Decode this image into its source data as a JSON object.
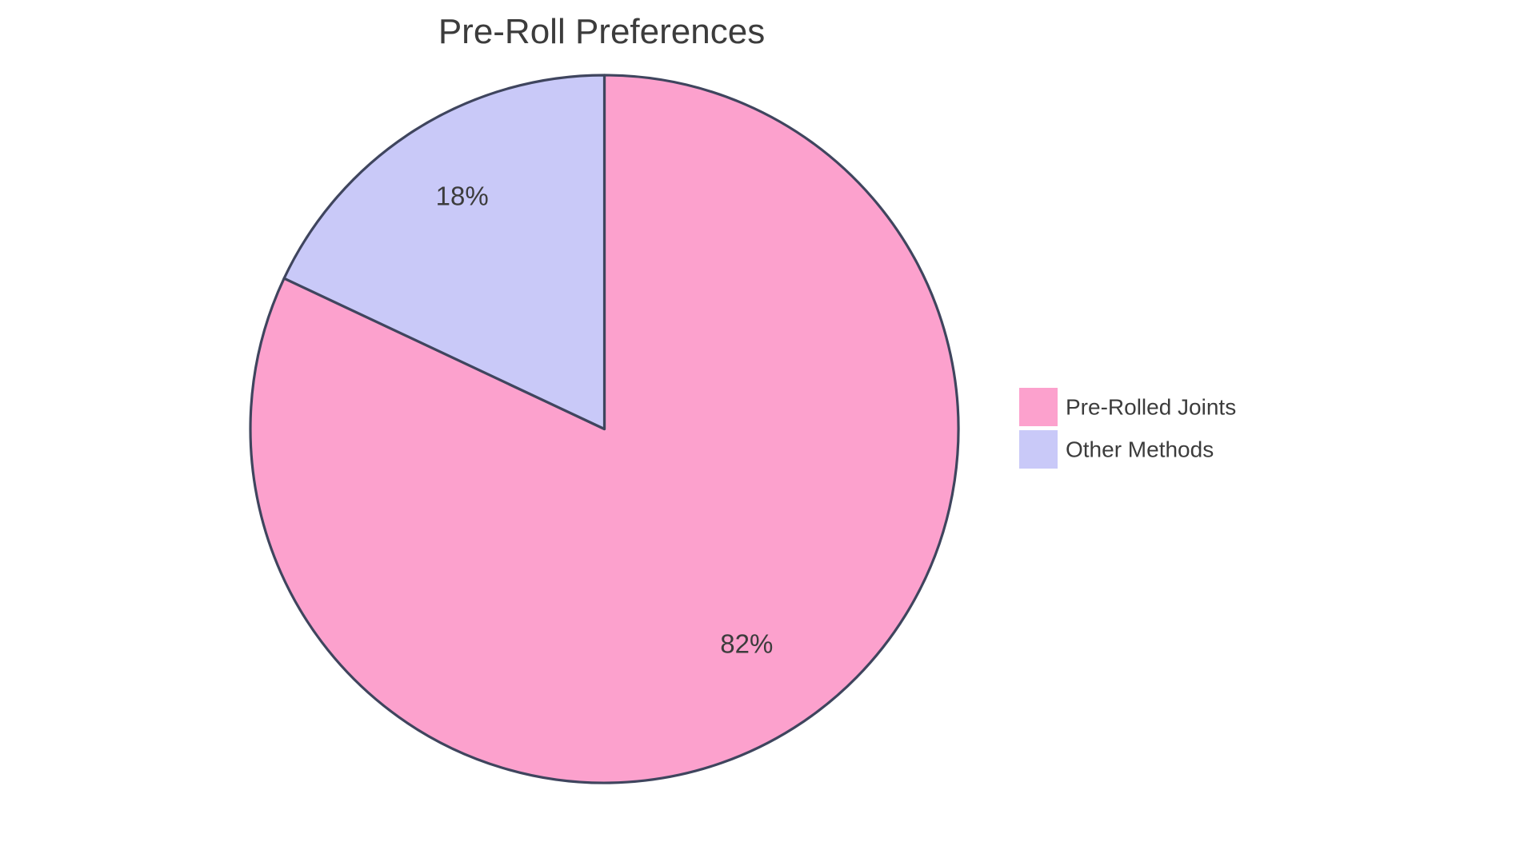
{
  "chart_data": {
    "type": "pie",
    "title": "Pre-Roll Preferences",
    "categories": [
      "Pre-Rolled Joints",
      "Other Methods"
    ],
    "values": [
      82,
      18
    ],
    "percent_labels": [
      "82%",
      "18%"
    ],
    "colors": [
      "#FCA1CD",
      "#C9C9F8"
    ],
    "slice_border_color": "#3F455E",
    "text_color": "#3C3C3C",
    "background_color": "#FFFFFF",
    "legend_position": "right",
    "start_angle": "12 o'clock",
    "direction": "clockwise"
  }
}
